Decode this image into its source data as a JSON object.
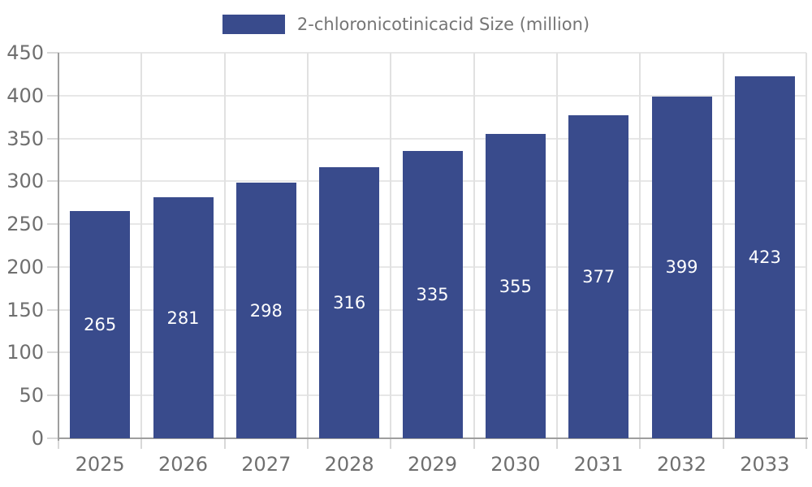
{
  "chart_data": {
    "type": "bar",
    "categories": [
      "2025",
      "2026",
      "2027",
      "2028",
      "2029",
      "2030",
      "2031",
      "2032",
      "2033"
    ],
    "values": [
      265,
      281,
      298,
      316,
      335,
      355,
      377,
      399,
      423
    ],
    "series_name": "2-chloronicotinicacid Size (million)",
    "title": "",
    "xlabel": "",
    "ylabel": "",
    "ylim": [
      0,
      450
    ],
    "yticks": [
      0,
      50,
      100,
      150,
      200,
      250,
      300,
      350,
      400,
      450
    ],
    "grid": true,
    "legend_position": "top-center",
    "value_labels": "inside-center",
    "colors": {
      "bar": "#394b8c",
      "bar_value_text": "#ffffff",
      "legend_text": "#757575",
      "tick_text": "#6f6f6f",
      "axis_line": "#9e9e9e",
      "grid_line_h": "#e7e7e7",
      "grid_line_v": "#e1e1e1",
      "tick_mark": "#d8d8d8",
      "background": "#ffffff"
    }
  }
}
